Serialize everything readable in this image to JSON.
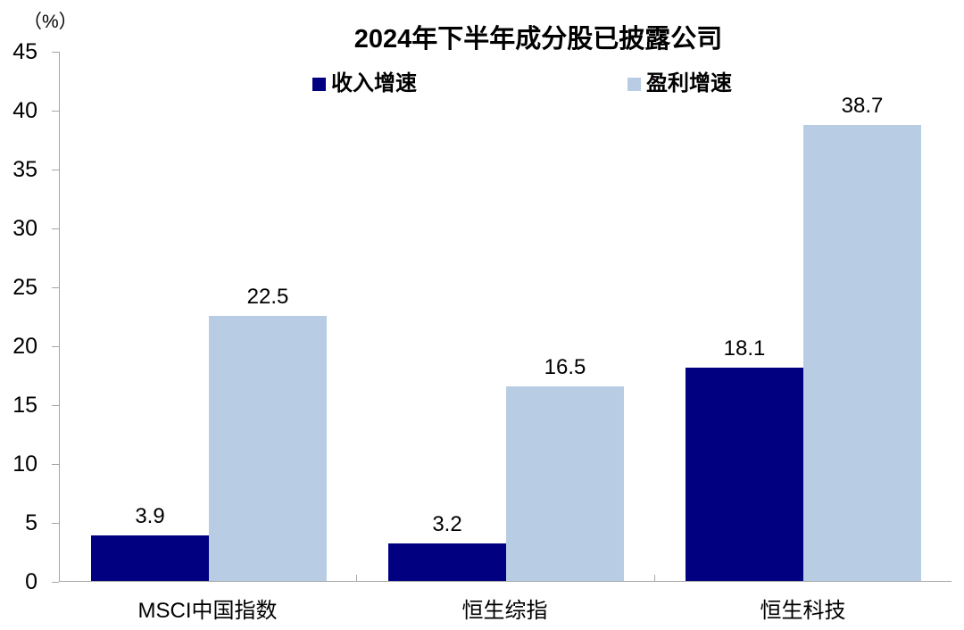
{
  "chart": {
    "unit_label": "（%）"
  },
  "chart_data": {
    "type": "bar",
    "title": "2024年下半年成分股已披露公司",
    "xlabel": "",
    "ylabel": "%",
    "categories": [
      "MSCI中国指数",
      "恒生综指",
      "恒生科技"
    ],
    "series": [
      {
        "name": "收入增速",
        "color": "#000080",
        "values": [
          3.9,
          3.2,
          18.1
        ]
      },
      {
        "name": "盈利增速",
        "color": "#B8CCE4",
        "values": [
          22.5,
          16.5,
          38.7
        ]
      }
    ],
    "ylim": [
      0,
      45
    ],
    "yticks": [
      0,
      5,
      10,
      15,
      20,
      25,
      30,
      35,
      40,
      45
    ],
    "grid": false,
    "legend_position": "top-center",
    "show_value_labels": true,
    "value_label_decimals": 1
  },
  "colors": {
    "axis": "#A6A6A6",
    "text": "#000000",
    "background": "#FFFFFF"
  }
}
